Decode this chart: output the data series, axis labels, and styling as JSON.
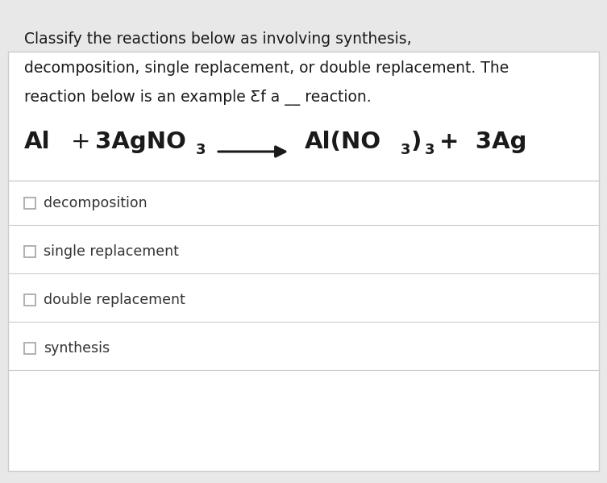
{
  "background_color": "#e8e8e8",
  "card_color": "#ffffff",
  "card_border_color": "#cccccc",
  "text_color": "#1a1a1a",
  "option_text_color": "#333333",
  "line_color": "#cccccc",
  "checkbox_color": "#aaaaaa",
  "instruction_lines": [
    "Classify the reactions below as involving synthesis,",
    "decomposition, single replacement, or double replacement. The",
    "reaction below is an example Ƹf a __ reaction."
  ],
  "options": [
    "decomposition",
    "single replacement",
    "double replacement",
    "synthesis"
  ],
  "title_fontsize": 13.5,
  "reaction_fontsize": 21,
  "sub_fontsize": 13,
  "option_fontsize": 12.5
}
